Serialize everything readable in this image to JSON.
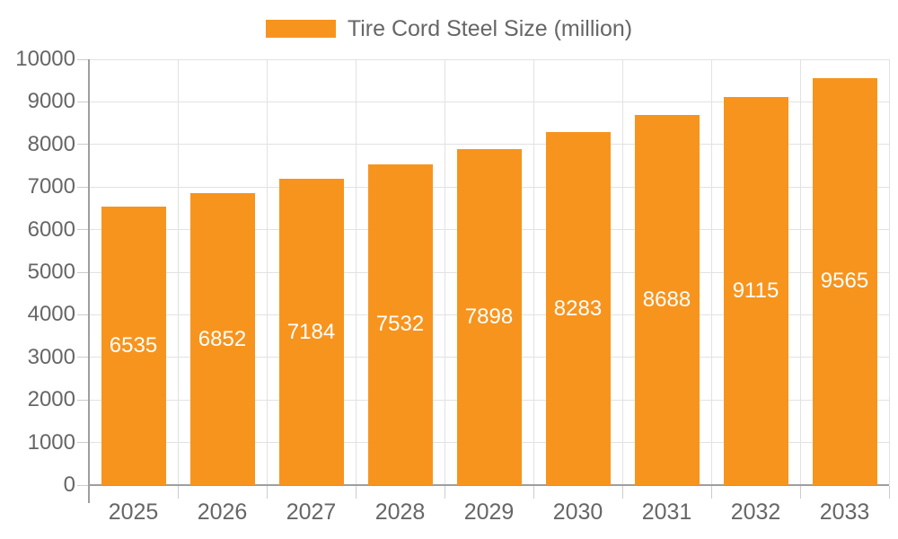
{
  "chart_data": {
    "type": "bar",
    "title": "",
    "legend_label": "Tire Cord Steel Size (million)",
    "legend_position": "top-center",
    "categories": [
      "2025",
      "2026",
      "2027",
      "2028",
      "2029",
      "2030",
      "2031",
      "2032",
      "2033"
    ],
    "series": [
      {
        "name": "Tire Cord Steel Size (million)",
        "color": "#F7941E",
        "values": [
          6535,
          6852,
          7184,
          7532,
          7898,
          8283,
          8688,
          9115,
          9565
        ]
      }
    ],
    "value_labels_shown": true,
    "xlabel": "",
    "ylabel": "",
    "ylim": [
      0,
      10000
    ],
    "ytick_step": 1000,
    "yticks": [
      0,
      1000,
      2000,
      3000,
      4000,
      5000,
      6000,
      7000,
      8000,
      9000,
      10000
    ],
    "grid": "horizontal-and-vertical"
  },
  "style": {
    "bar_color": "#F7941E",
    "grid_color": "#E2E2E2",
    "axis_line_color": "#9E9E9E",
    "tick_color": "#CCCCCC",
    "axis_label_color": "#666666",
    "legend_text_color": "#666666",
    "value_label_color": "#FFFFFF",
    "background_color": "#FFFFFF"
  }
}
